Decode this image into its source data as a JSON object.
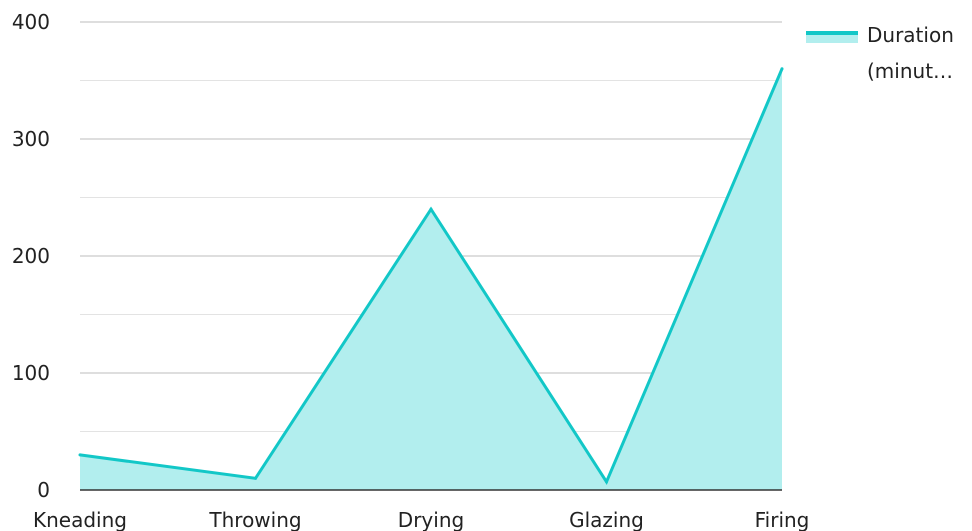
{
  "chart_data": {
    "type": "area",
    "categories": [
      "Kneading",
      "Throwing",
      "Drying",
      "Glazing",
      "Firing"
    ],
    "series": [
      {
        "name": "Duration (minut…",
        "values": [
          30,
          10,
          240,
          7,
          360
        ]
      }
    ],
    "ylim": [
      0,
      400
    ],
    "yticks": [
      "0",
      "100",
      "200",
      "300",
      "400"
    ],
    "grid": true,
    "legend": {
      "placement": "top-right",
      "lines": [
        "Duration",
        "(minut…"
      ]
    },
    "colors": {
      "line": "#12c7c7",
      "fill": "#b2eeee",
      "grid_major": "#bdbdbd",
      "grid_minor": "#e3e3e3",
      "axis": "#333333",
      "text": "#222222"
    }
  }
}
